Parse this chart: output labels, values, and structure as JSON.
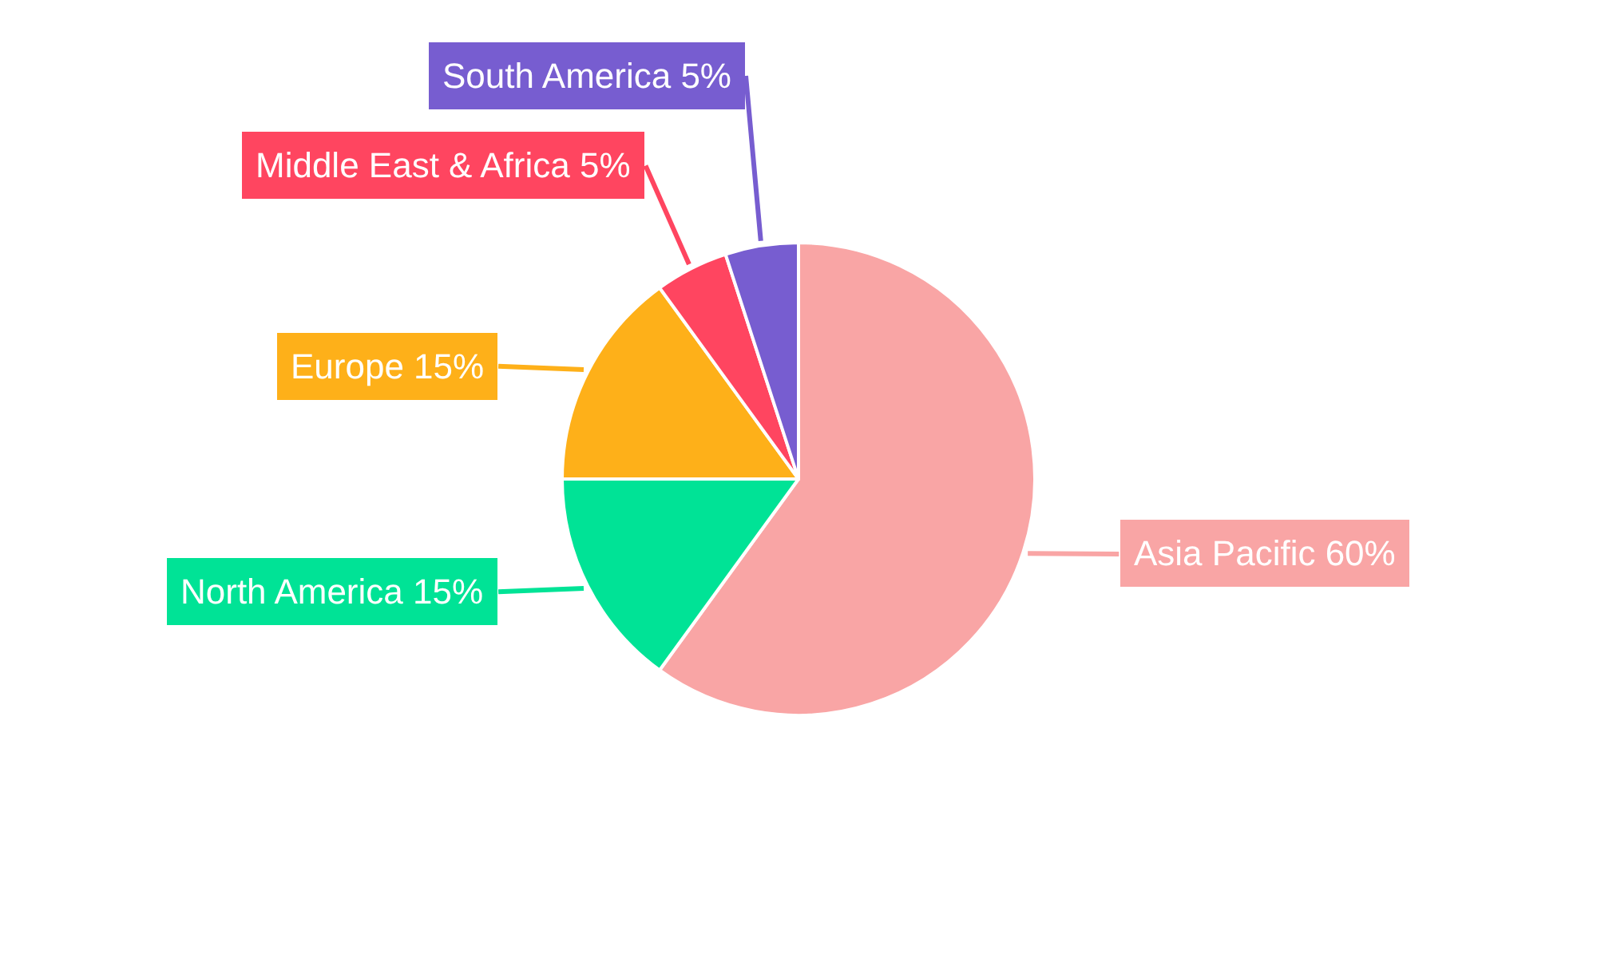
{
  "chart_data": {
    "type": "pie",
    "categories": [
      "Asia Pacific",
      "North America",
      "Europe",
      "Middle East & Africa",
      "South America"
    ],
    "values": [
      60,
      15,
      15,
      5,
      5
    ],
    "value_labels": [
      "60%",
      "15%",
      "15%",
      "5%",
      "5%"
    ],
    "colors": [
      "#f9a5a5",
      "#00e396",
      "#feb019",
      "#ff4560",
      "#775dd0"
    ],
    "legend": false
  }
}
